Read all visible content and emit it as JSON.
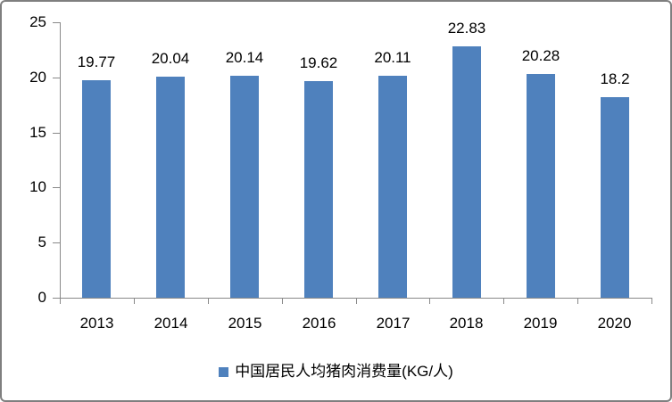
{
  "chart_data": {
    "type": "bar",
    "categories": [
      "2013",
      "2014",
      "2015",
      "2016",
      "2017",
      "2018",
      "2019",
      "2020"
    ],
    "values": [
      19.77,
      20.04,
      20.14,
      19.62,
      20.11,
      22.83,
      20.28,
      18.2
    ],
    "data_labels": [
      "19.77",
      "20.04",
      "20.14",
      "19.62",
      "20.11",
      "22.83",
      "20.28",
      "18.2"
    ],
    "title": "",
    "xlabel": "",
    "ylabel": "",
    "ylim": [
      0,
      25
    ],
    "yticks": [
      0,
      5,
      10,
      15,
      20,
      25
    ],
    "grid": false,
    "legend_position": "bottom",
    "series_name": "中国居民人均猪肉消费量(KG/人)"
  },
  "legend": {
    "label": "中国居民人均猪肉消费量(KG/人)"
  },
  "colors": {
    "bar": "#4F81BD",
    "axis": "#898989",
    "frame_border": "#7F7F7F",
    "text": "#000000",
    "background": "#FFFFFF"
  }
}
